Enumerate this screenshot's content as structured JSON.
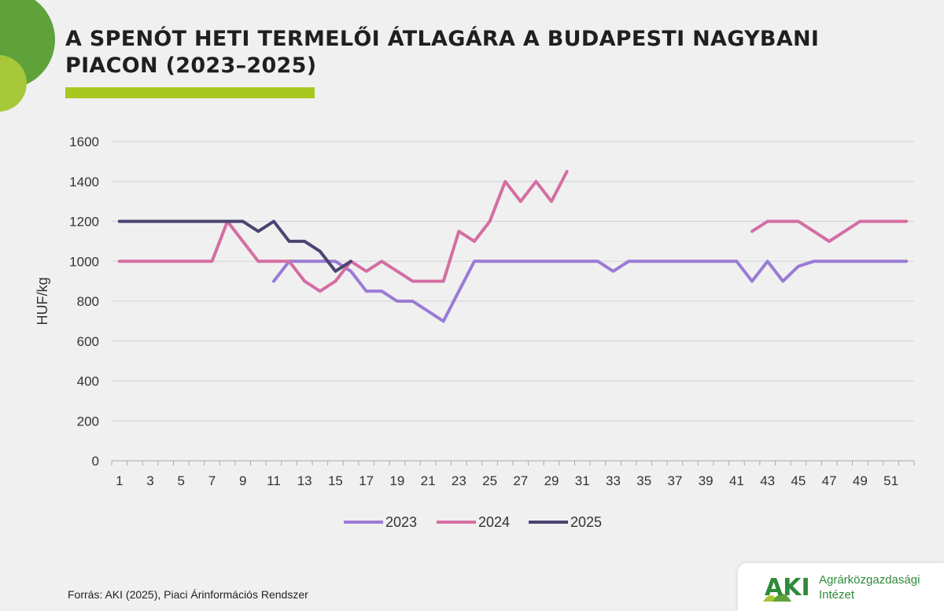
{
  "title": "A SPENÓT HETI TERMELŐI ÁTLAGÁRA A BUDAPESTI NAGYBANI PIACON (2023–2025)",
  "source": "Forrás: AKI (2025), Piaci Árinformációs Rendszer",
  "logo": {
    "mark": "AKI",
    "line1": "Agrárközgazdasági",
    "line2": "Intézet"
  },
  "colors": {
    "accent_green": "#a8c820",
    "series_2023": "#9a7bd5",
    "series_2024": "#d46ea2",
    "series_2025": "#4b4370"
  },
  "chart_data": {
    "type": "line",
    "title": "A SPENÓT HETI TERMELŐI ÁTLAGÁRA A BUDAPESTI NAGYBANI PIACON (2023–2025)",
    "xlabel": "",
    "ylabel": "HUF/kg",
    "xlim": [
      1,
      52
    ],
    "ylim": [
      0,
      1600
    ],
    "yticks": [
      0,
      200,
      400,
      600,
      800,
      1000,
      1200,
      1400,
      1600
    ],
    "xticks": [
      1,
      3,
      5,
      7,
      9,
      11,
      13,
      15,
      17,
      19,
      21,
      23,
      25,
      27,
      29,
      31,
      33,
      35,
      37,
      39,
      41,
      43,
      45,
      47,
      49,
      51
    ],
    "grid": true,
    "legend_position": "bottom",
    "series": [
      {
        "name": "2023",
        "color": "#9a7bd5",
        "points": [
          [
            11,
            900
          ],
          [
            12,
            1000
          ],
          [
            13,
            1000
          ],
          [
            14,
            1000
          ],
          [
            15,
            1000
          ],
          [
            16,
            950
          ],
          [
            17,
            850
          ],
          [
            18,
            850
          ],
          [
            19,
            800
          ],
          [
            20,
            800
          ],
          [
            21,
            750
          ],
          [
            22,
            700
          ],
          [
            23,
            850
          ],
          [
            24,
            1000
          ],
          [
            25,
            1000
          ],
          [
            26,
            1000
          ],
          [
            27,
            1000
          ],
          [
            28,
            1000
          ],
          [
            29,
            1000
          ],
          [
            30,
            1000
          ],
          [
            31,
            1000
          ],
          [
            32,
            1000
          ],
          [
            33,
            950
          ],
          [
            34,
            1000
          ],
          [
            35,
            1000
          ],
          [
            36,
            1000
          ],
          [
            37,
            1000
          ],
          [
            38,
            1000
          ],
          [
            39,
            1000
          ],
          [
            40,
            1000
          ],
          [
            41,
            1000
          ],
          [
            42,
            900
          ],
          [
            43,
            1000
          ],
          [
            44,
            900
          ],
          [
            45,
            975
          ],
          [
            46,
            1000
          ],
          [
            47,
            1000
          ],
          [
            48,
            1000
          ],
          [
            49,
            1000
          ],
          [
            50,
            1000
          ],
          [
            51,
            1000
          ],
          [
            52,
            1000
          ]
        ]
      },
      {
        "name": "2024",
        "color": "#d46ea2",
        "segments": [
          [
            [
              1,
              1000
            ],
            [
              2,
              1000
            ],
            [
              3,
              1000
            ],
            [
              4,
              1000
            ],
            [
              5,
              1000
            ],
            [
              6,
              1000
            ],
            [
              7,
              1000
            ],
            [
              8,
              1200
            ],
            [
              9,
              1100
            ],
            [
              10,
              1000
            ],
            [
              11,
              1000
            ],
            [
              12,
              1000
            ],
            [
              13,
              900
            ],
            [
              14,
              850
            ],
            [
              15,
              900
            ],
            [
              16,
              1000
            ],
            [
              17,
              950
            ],
            [
              18,
              1000
            ],
            [
              19,
              950
            ],
            [
              20,
              900
            ],
            [
              21,
              900
            ],
            [
              22,
              900
            ],
            [
              23,
              1150
            ],
            [
              24,
              1100
            ],
            [
              25,
              1200
            ],
            [
              26,
              1400
            ],
            [
              27,
              1300
            ],
            [
              28,
              1400
            ],
            [
              29,
              1300
            ],
            [
              30,
              1450
            ]
          ],
          [
            [
              42,
              1150
            ],
            [
              43,
              1200
            ],
            [
              44,
              1200
            ],
            [
              45,
              1200
            ],
            [
              46,
              1150
            ],
            [
              47,
              1100
            ],
            [
              48,
              1150
            ],
            [
              49,
              1200
            ],
            [
              50,
              1200
            ],
            [
              51,
              1200
            ],
            [
              52,
              1200
            ]
          ]
        ]
      },
      {
        "name": "2025",
        "color": "#4b4370",
        "points": [
          [
            1,
            1200
          ],
          [
            2,
            1200
          ],
          [
            3,
            1200
          ],
          [
            4,
            1200
          ],
          [
            5,
            1200
          ],
          [
            6,
            1200
          ],
          [
            7,
            1200
          ],
          [
            8,
            1200
          ],
          [
            9,
            1200
          ],
          [
            10,
            1150
          ],
          [
            11,
            1200
          ],
          [
            12,
            1100
          ],
          [
            13,
            1100
          ],
          [
            14,
            1050
          ],
          [
            15,
            950
          ],
          [
            16,
            1000
          ]
        ]
      }
    ]
  }
}
